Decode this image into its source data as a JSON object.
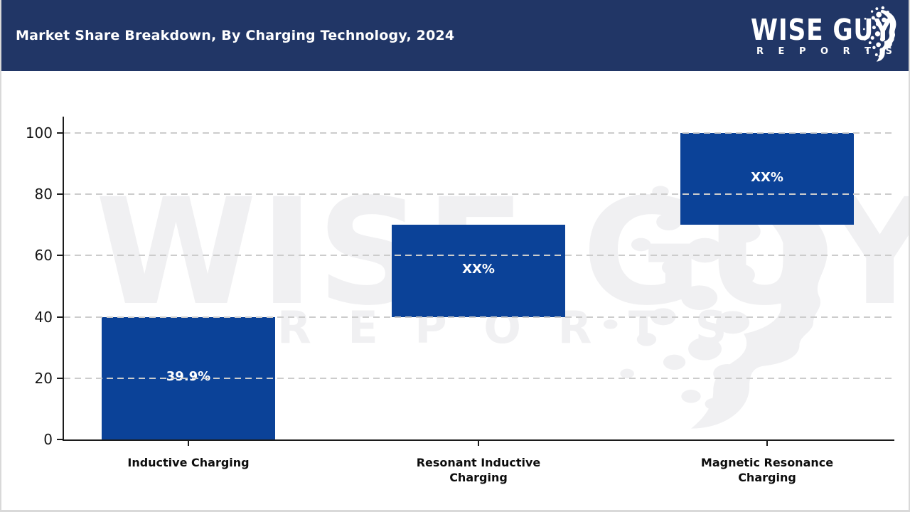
{
  "header": {
    "title": "Market Share Breakdown, By Charging Technology, 2024",
    "logo": {
      "wordmark": "WISE GUY",
      "subtitle": "R E P O R T S"
    }
  },
  "watermark": {
    "line1": "WISE GUY",
    "line2": "R E P O R T S"
  },
  "chart_data": {
    "type": "bar",
    "variant": "floating-waterfall",
    "title": "Market Share Breakdown, By Charging Technology, 2024",
    "categories": [
      [
        "Inductive Charging"
      ],
      [
        "Resonant Inductive",
        "Charging"
      ],
      [
        "Magnetic Resonance",
        "Charging"
      ]
    ],
    "series": [
      {
        "name": "Market share (%)",
        "segments": [
          {
            "category": "Inductive Charging",
            "start": 0,
            "end": 39.9,
            "label": "39.9%"
          },
          {
            "category": "Resonant Inductive Charging",
            "start": 40,
            "end": 70,
            "label": "XX%"
          },
          {
            "category": "Magnetic Resonance Charging",
            "start": 70,
            "end": 100,
            "label": "XX%"
          }
        ]
      }
    ],
    "ylim": [
      0,
      100
    ],
    "yticks": [
      0,
      20,
      40,
      60,
      80,
      100
    ],
    "grid": "dashed-horizontal",
    "legend": "none",
    "bar_color": "#0b4298",
    "bar_label_color": "#ffffff",
    "header_bg_color": "#213666",
    "watermark_color": "#f0f0f2"
  }
}
